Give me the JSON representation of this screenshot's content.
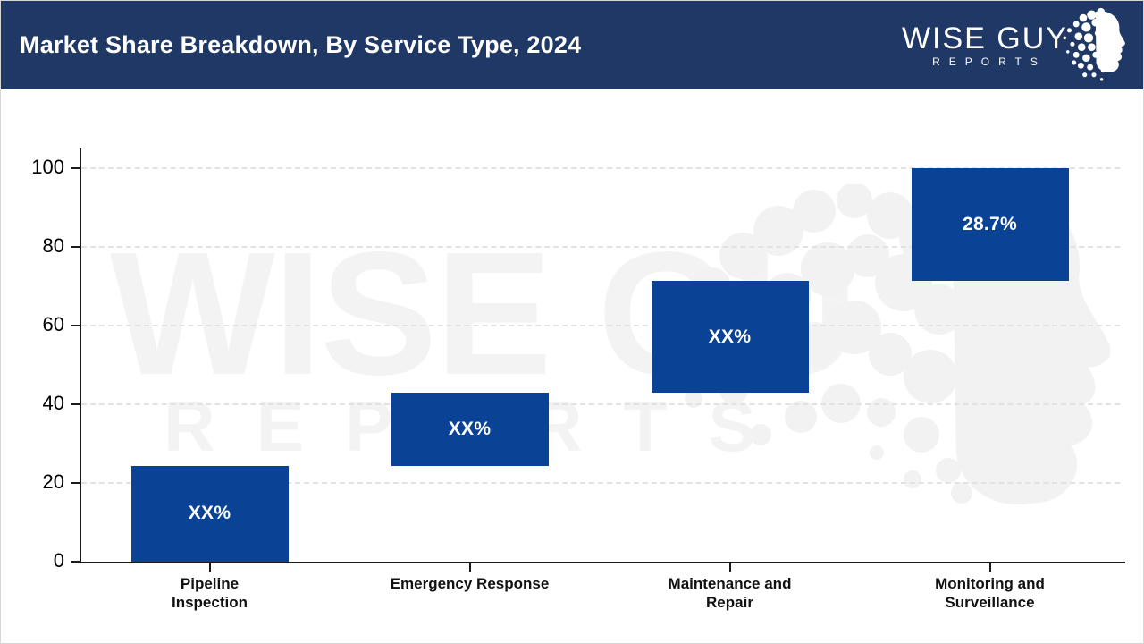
{
  "header": {
    "title": "Market Share Breakdown, By Service Type, 2024",
    "logo": {
      "line1": "WISE GUY",
      "line2": "REPORTS"
    }
  },
  "watermark": {
    "line1": "WISE GU",
    "line2": "REPORTS"
  },
  "chart_data": {
    "type": "bar",
    "subtype": "floating-waterfall",
    "title": "Market Share Breakdown, By Service Type, 2024",
    "xlabel": "",
    "ylabel": "",
    "ylim": [
      0,
      100
    ],
    "yticks": [
      0,
      20,
      40,
      60,
      80,
      100
    ],
    "grid": "horizontal-dashed",
    "legend": "none",
    "bar_color": "#0a4296",
    "categories": [
      "Pipeline Inspection",
      "Emergency Response",
      "Maintenance and Repair",
      "Monitoring and Surveillance"
    ],
    "category_lines": [
      [
        "Pipeline",
        "Inspection"
      ],
      [
        "Emergency Response"
      ],
      [
        "Maintenance and",
        "Repair"
      ],
      [
        "Monitoring and",
        "Surveillance"
      ]
    ],
    "segments": [
      {
        "category": "Pipeline Inspection",
        "start": 0,
        "end": 24.4,
        "label": "XX%"
      },
      {
        "category": "Emergency Response",
        "start": 24.4,
        "end": 42.9,
        "label": "XX%"
      },
      {
        "category": "Maintenance and Repair",
        "start": 42.9,
        "end": 71.3,
        "label": "XX%"
      },
      {
        "category": "Monitoring and Surveillance",
        "start": 71.3,
        "end": 100,
        "label": "28.7%"
      }
    ]
  }
}
